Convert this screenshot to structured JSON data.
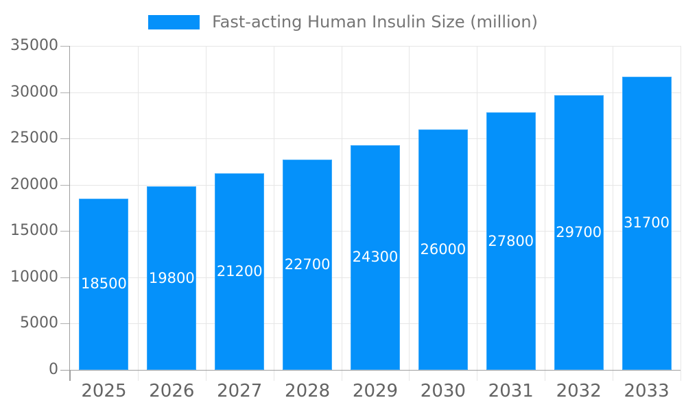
{
  "chart_data": {
    "type": "bar",
    "legend": "Fast-acting Human Insulin Size (million)",
    "legend_position": "top-center",
    "categories": [
      "2025",
      "2026",
      "2027",
      "2028",
      "2029",
      "2030",
      "2031",
      "2032",
      "2033"
    ],
    "values": [
      18500,
      19800,
      21200,
      22700,
      24300,
      26000,
      27800,
      29700,
      31700
    ],
    "value_labels": [
      "18500",
      "19800",
      "21200",
      "22700",
      "24300",
      "26000",
      "27800",
      "29700",
      "31700"
    ],
    "value_label_placement": "centered-inside-bar",
    "xlabel": "",
    "ylabel": "",
    "ylim": [
      0,
      35000
    ],
    "yticks": [
      0,
      5000,
      10000,
      15000,
      20000,
      25000,
      30000,
      35000
    ],
    "ytick_labels": [
      "0",
      "5000",
      "10000",
      "15000",
      "20000",
      "25000",
      "30000",
      "35000"
    ],
    "grid": "horizontal and vertical category boundaries"
  },
  "colors": {
    "bar": "#0591fa",
    "grid": "#e6e6e6",
    "axis": "#9e9e9e",
    "tick": "#b0b0b0",
    "axis_text": "#636363",
    "legend_text": "#757575",
    "value_label": "#ffffff",
    "background": "#ffffff"
  }
}
